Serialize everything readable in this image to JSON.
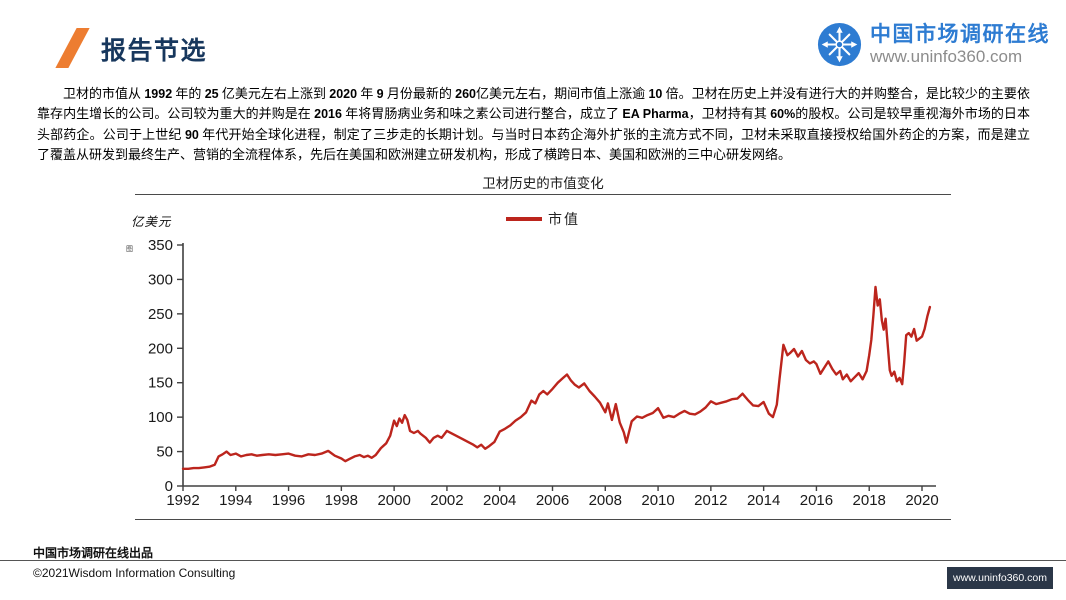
{
  "header": {
    "title": "报告节选",
    "logo": {
      "name": "中国市场调研在线",
      "url": "www.uninfo360.com",
      "brand_blue": "#2E7CD2",
      "accent_orange": "#ED7D31",
      "title_navy": "#17375D"
    }
  },
  "paragraph": {
    "segments": [
      {
        "t": "卫材的市值从 ",
        "b": false
      },
      {
        "t": "1992",
        "b": true
      },
      {
        "t": " 年的 ",
        "b": false
      },
      {
        "t": "25",
        "b": true
      },
      {
        "t": " 亿美元左右上涨到 ",
        "b": false
      },
      {
        "t": "2020",
        "b": true
      },
      {
        "t": " 年 ",
        "b": false
      },
      {
        "t": "9",
        "b": true
      },
      {
        "t": " 月份最新的 ",
        "b": false
      },
      {
        "t": "260",
        "b": true
      },
      {
        "t": "亿美元左右，期间市值上涨逾 ",
        "b": false
      },
      {
        "t": "10",
        "b": true
      },
      {
        "t": " 倍。卫材在历史上并没有进行大的并购整合，是比较少的主要依靠存内生增长的公司。公司较为重大的并购是在 ",
        "b": false
      },
      {
        "t": "2016",
        "b": true
      },
      {
        "t": " 年将胃肠病业务和味之素公司进行整合，成立了 ",
        "b": false
      },
      {
        "t": "EA Pharma",
        "b": true
      },
      {
        "t": "，卫材持有其 ",
        "b": false
      },
      {
        "t": "60%",
        "b": true
      },
      {
        "t": "的股权。公司是较早重视海外市场的日本头部药企。公司于上世纪 ",
        "b": false
      },
      {
        "t": "90",
        "b": true
      },
      {
        "t": " 年代开始全球化进程，制定了三步走的长期计划。与当时日本药企海外扩张的主流方式不同，卫材未采取直接授权给国外药企的方案，而是建立了覆盖从研发到最终生产、营销的全流程体系，先后在美国和欧洲建立研发机构，形成了横跨日本、美国和欧洲的三中心研发网络。",
        "b": false
      }
    ]
  },
  "chart_data": {
    "type": "line",
    "title": "卫材历史的市值变化",
    "ylabel": "亿美元",
    "corner_mark": "图",
    "legend_position": "top-center",
    "grid": false,
    "xlim": [
      1992,
      2020
    ],
    "ylim": [
      0,
      350
    ],
    "xticks": [
      1992,
      1994,
      1996,
      1998,
      2000,
      2002,
      2004,
      2006,
      2008,
      2010,
      2012,
      2014,
      2016,
      2018,
      2020
    ],
    "yticks": [
      0,
      50,
      100,
      150,
      200,
      250,
      300,
      350
    ],
    "series": [
      {
        "name": "市值",
        "color": "#BC251D",
        "points": [
          [
            1992.0,
            25
          ],
          [
            1992.2,
            25
          ],
          [
            1992.4,
            26
          ],
          [
            1992.6,
            26
          ],
          [
            1992.8,
            27
          ],
          [
            1993.0,
            28
          ],
          [
            1993.2,
            31
          ],
          [
            1993.35,
            43
          ],
          [
            1993.5,
            46
          ],
          [
            1993.65,
            50
          ],
          [
            1993.8,
            45
          ],
          [
            1994.0,
            47
          ],
          [
            1994.2,
            43
          ],
          [
            1994.4,
            45
          ],
          [
            1994.6,
            46
          ],
          [
            1994.8,
            44
          ],
          [
            1995.0,
            45
          ],
          [
            1995.25,
            46
          ],
          [
            1995.5,
            45
          ],
          [
            1995.75,
            46
          ],
          [
            1996.0,
            47
          ],
          [
            1996.25,
            44
          ],
          [
            1996.5,
            43
          ],
          [
            1996.75,
            46
          ],
          [
            1997.0,
            45
          ],
          [
            1997.25,
            47
          ],
          [
            1997.5,
            51
          ],
          [
            1997.75,
            44
          ],
          [
            1998.0,
            40
          ],
          [
            1998.15,
            36
          ],
          [
            1998.3,
            39
          ],
          [
            1998.5,
            43
          ],
          [
            1998.7,
            45
          ],
          [
            1998.85,
            42
          ],
          [
            1999.0,
            44
          ],
          [
            1999.15,
            41
          ],
          [
            1999.3,
            45
          ],
          [
            1999.5,
            55
          ],
          [
            1999.7,
            62
          ],
          [
            1999.85,
            73
          ],
          [
            2000.0,
            95
          ],
          [
            2000.1,
            87
          ],
          [
            2000.2,
            98
          ],
          [
            2000.3,
            92
          ],
          [
            2000.4,
            103
          ],
          [
            2000.5,
            96
          ],
          [
            2000.6,
            80
          ],
          [
            2000.75,
            77
          ],
          [
            2000.9,
            80
          ],
          [
            2001.0,
            76
          ],
          [
            2001.2,
            70
          ],
          [
            2001.35,
            63
          ],
          [
            2001.5,
            70
          ],
          [
            2001.65,
            73
          ],
          [
            2001.8,
            70
          ],
          [
            2002.0,
            80
          ],
          [
            2002.2,
            76
          ],
          [
            2002.4,
            72
          ],
          [
            2002.6,
            68
          ],
          [
            2002.8,
            64
          ],
          [
            2003.0,
            60
          ],
          [
            2003.15,
            56
          ],
          [
            2003.3,
            60
          ],
          [
            2003.45,
            54
          ],
          [
            2003.6,
            58
          ],
          [
            2003.8,
            64
          ],
          [
            2004.0,
            79
          ],
          [
            2004.2,
            83
          ],
          [
            2004.4,
            88
          ],
          [
            2004.6,
            95
          ],
          [
            2004.8,
            100
          ],
          [
            2005.0,
            107
          ],
          [
            2005.2,
            124
          ],
          [
            2005.35,
            120
          ],
          [
            2005.5,
            133
          ],
          [
            2005.65,
            138
          ],
          [
            2005.8,
            133
          ],
          [
            2006.0,
            141
          ],
          [
            2006.2,
            150
          ],
          [
            2006.4,
            157
          ],
          [
            2006.55,
            162
          ],
          [
            2006.7,
            153
          ],
          [
            2006.85,
            147
          ],
          [
            2007.0,
            143
          ],
          [
            2007.2,
            149
          ],
          [
            2007.4,
            138
          ],
          [
            2007.6,
            130
          ],
          [
            2007.8,
            121
          ],
          [
            2008.0,
            107
          ],
          [
            2008.1,
            120
          ],
          [
            2008.25,
            96
          ],
          [
            2008.4,
            119
          ],
          [
            2008.55,
            92
          ],
          [
            2008.7,
            78
          ],
          [
            2008.8,
            63
          ],
          [
            2009.0,
            94
          ],
          [
            2009.2,
            101
          ],
          [
            2009.4,
            99
          ],
          [
            2009.6,
            103
          ],
          [
            2009.8,
            106
          ],
          [
            2010.0,
            113
          ],
          [
            2010.2,
            99
          ],
          [
            2010.4,
            102
          ],
          [
            2010.6,
            100
          ],
          [
            2010.8,
            105
          ],
          [
            2011.0,
            109
          ],
          [
            2011.2,
            105
          ],
          [
            2011.4,
            104
          ],
          [
            2011.6,
            108
          ],
          [
            2011.8,
            114
          ],
          [
            2012.0,
            123
          ],
          [
            2012.2,
            119
          ],
          [
            2012.4,
            121
          ],
          [
            2012.6,
            123
          ],
          [
            2012.8,
            126
          ],
          [
            2013.0,
            127
          ],
          [
            2013.2,
            134
          ],
          [
            2013.4,
            125
          ],
          [
            2013.6,
            117
          ],
          [
            2013.8,
            116
          ],
          [
            2014.0,
            122
          ],
          [
            2014.2,
            105
          ],
          [
            2014.35,
            100
          ],
          [
            2014.5,
            118
          ],
          [
            2014.6,
            155
          ],
          [
            2014.75,
            205
          ],
          [
            2014.9,
            190
          ],
          [
            2015.0,
            193
          ],
          [
            2015.15,
            199
          ],
          [
            2015.3,
            188
          ],
          [
            2015.45,
            196
          ],
          [
            2015.6,
            183
          ],
          [
            2015.75,
            178
          ],
          [
            2015.9,
            181
          ],
          [
            2016.0,
            177
          ],
          [
            2016.15,
            163
          ],
          [
            2016.3,
            172
          ],
          [
            2016.45,
            181
          ],
          [
            2016.6,
            170
          ],
          [
            2016.75,
            162
          ],
          [
            2016.9,
            167
          ],
          [
            2017.0,
            155
          ],
          [
            2017.15,
            162
          ],
          [
            2017.3,
            152
          ],
          [
            2017.45,
            158
          ],
          [
            2017.6,
            164
          ],
          [
            2017.75,
            155
          ],
          [
            2017.9,
            167
          ],
          [
            2018.0,
            190
          ],
          [
            2018.08,
            212
          ],
          [
            2018.16,
            248
          ],
          [
            2018.24,
            289
          ],
          [
            2018.32,
            262
          ],
          [
            2018.4,
            271
          ],
          [
            2018.48,
            240
          ],
          [
            2018.55,
            227
          ],
          [
            2018.62,
            243
          ],
          [
            2018.7,
            205
          ],
          [
            2018.78,
            168
          ],
          [
            2018.85,
            160
          ],
          [
            2018.95,
            166
          ],
          [
            2019.05,
            152
          ],
          [
            2019.15,
            157
          ],
          [
            2019.25,
            148
          ],
          [
            2019.32,
            178
          ],
          [
            2019.4,
            219
          ],
          [
            2019.5,
            222
          ],
          [
            2019.6,
            217
          ],
          [
            2019.7,
            228
          ],
          [
            2019.8,
            211
          ],
          [
            2019.9,
            214
          ],
          [
            2020.0,
            217
          ],
          [
            2020.1,
            228
          ],
          [
            2020.2,
            246
          ],
          [
            2020.3,
            260
          ]
        ]
      }
    ]
  },
  "footer": {
    "produced_by": "中国市场调研在线出品",
    "copyright": "©2021Wisdom Information Consulting",
    "site": "www.uninfo360.com"
  }
}
